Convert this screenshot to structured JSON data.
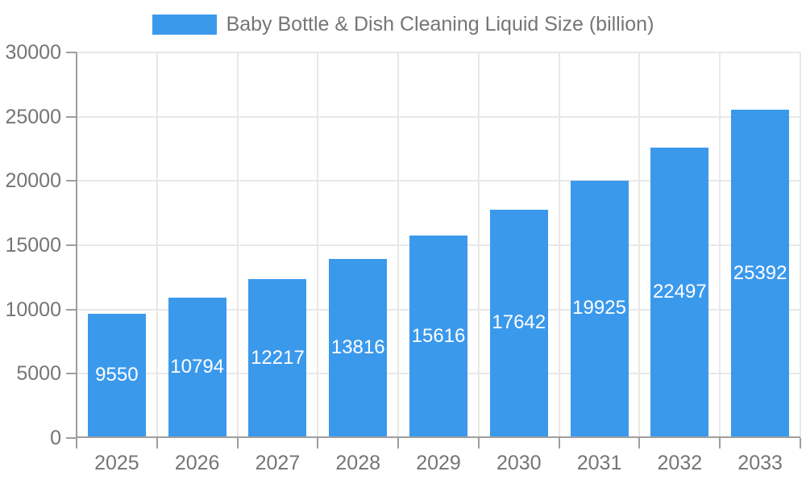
{
  "legend": {
    "label": "Baby Bottle & Dish Cleaning Liquid Size (billion)"
  },
  "chart_data": {
    "type": "bar",
    "title": "Baby Bottle & Dish Cleaning Liquid Size (billion)",
    "categories": [
      "2025",
      "2026",
      "2027",
      "2028",
      "2029",
      "2030",
      "2031",
      "2032",
      "2033"
    ],
    "values": [
      9550,
      10794,
      12217,
      13816,
      15616,
      17642,
      19925,
      22497,
      25392
    ],
    "xlabel": "",
    "ylabel": "",
    "ylim": [
      0,
      30000
    ],
    "yticks": [
      0,
      5000,
      10000,
      15000,
      20000,
      25000,
      30000
    ],
    "grid": true,
    "legend_position": "top-center",
    "value_labels": "centered-inside-bars",
    "colors": {
      "bar": "#3B99EC",
      "grid": "#E8E8E8",
      "axis": "#9E9E9E",
      "tick_text": "#757575",
      "legend_text": "#757575",
      "value_text": "#FFFFFF",
      "background": "#FFFFFF"
    }
  }
}
